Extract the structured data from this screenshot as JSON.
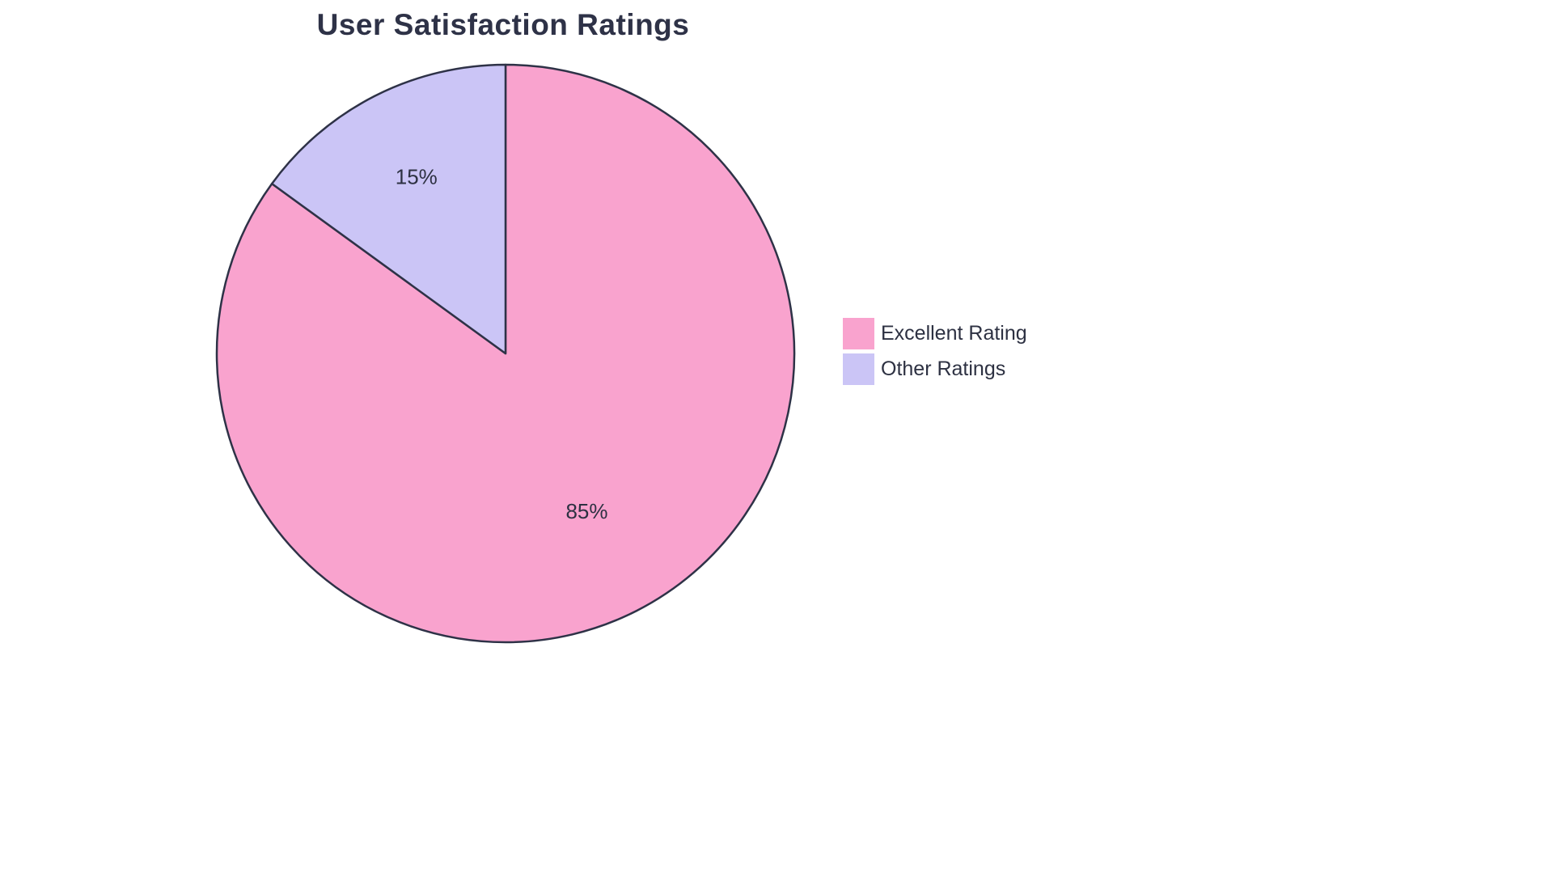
{
  "chart_data": {
    "type": "pie",
    "title": "User Satisfaction Ratings",
    "series": [
      {
        "label": "Excellent Rating",
        "value": 85,
        "display": "85%",
        "color": "#F9A3CE"
      },
      {
        "label": "Other Ratings",
        "value": 15,
        "display": "15%",
        "color": "#CBC5F6"
      }
    ],
    "start_angle_deg": 0,
    "direction": "clockwise",
    "legend_position": "right",
    "outline_color": "#2E3247",
    "label_color": "#2D3142",
    "title_color": "#2E3247",
    "legend_text_color": "#2D3142",
    "background": "#FFFFFF"
  }
}
